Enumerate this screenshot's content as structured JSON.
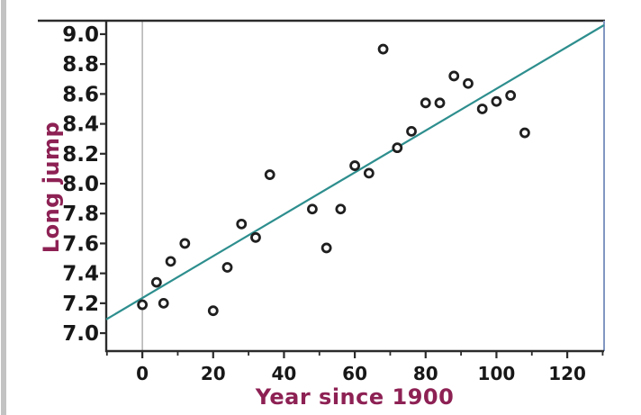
{
  "page": {
    "background": "#ffffff",
    "left_stripe_color": "#c3c3c3"
  },
  "chart_data": {
    "type": "scatter",
    "title": "",
    "xlabel": "Year since 1900",
    "ylabel": "Long jump",
    "x_ticks": [
      0,
      20,
      40,
      60,
      80,
      100,
      120
    ],
    "x_tick_labels": [
      "0",
      "20",
      "40",
      "60",
      "80",
      "100",
      "120"
    ],
    "x_minor_ticks": [
      -10,
      10,
      30,
      50,
      70,
      90,
      110,
      130
    ],
    "y_ticks": [
      7.0,
      7.2,
      7.4,
      7.6,
      7.8,
      8.0,
      8.2,
      8.4,
      8.6,
      8.8,
      9.0
    ],
    "y_tick_labels": [
      "7.0",
      "7.2",
      "7.4",
      "7.6",
      "7.8",
      "8.0",
      "8.2",
      "8.4",
      "8.6",
      "8.8",
      "9.0"
    ],
    "xlim": [
      -10.2,
      130.4
    ],
    "ylim": [
      6.88,
      9.09
    ],
    "gridlines_x": [
      0
    ],
    "legend": "none",
    "points": [
      [
        0,
        7.19
      ],
      [
        4,
        7.34
      ],
      [
        6,
        7.2
      ],
      [
        8,
        7.48
      ],
      [
        12,
        7.6
      ],
      [
        20,
        7.15
      ],
      [
        24,
        7.44
      ],
      [
        28,
        7.73
      ],
      [
        32,
        7.64
      ],
      [
        36,
        8.06
      ],
      [
        48,
        7.83
      ],
      [
        52,
        7.57
      ],
      [
        56,
        7.83
      ],
      [
        60,
        8.12
      ],
      [
        64,
        8.07
      ],
      [
        68,
        8.9
      ],
      [
        72,
        8.24
      ],
      [
        76,
        8.35
      ],
      [
        80,
        8.54
      ],
      [
        84,
        8.54
      ],
      [
        88,
        8.72
      ],
      [
        92,
        8.67
      ],
      [
        96,
        8.5
      ],
      [
        100,
        8.55
      ],
      [
        104,
        8.59
      ],
      [
        108,
        8.34
      ]
    ],
    "trend_line": {
      "slope": 0.014,
      "intercept": 7.235
    },
    "colors": {
      "point_stroke": "#1f1f1f",
      "point_fill": "#ffffff",
      "trend_line": "#2e8e8e",
      "axis": "#2b2b2b",
      "gridline": "#ababab",
      "tick_label": "#171717",
      "axis_label": "#8d2154",
      "right_border": "#8197c2"
    }
  }
}
